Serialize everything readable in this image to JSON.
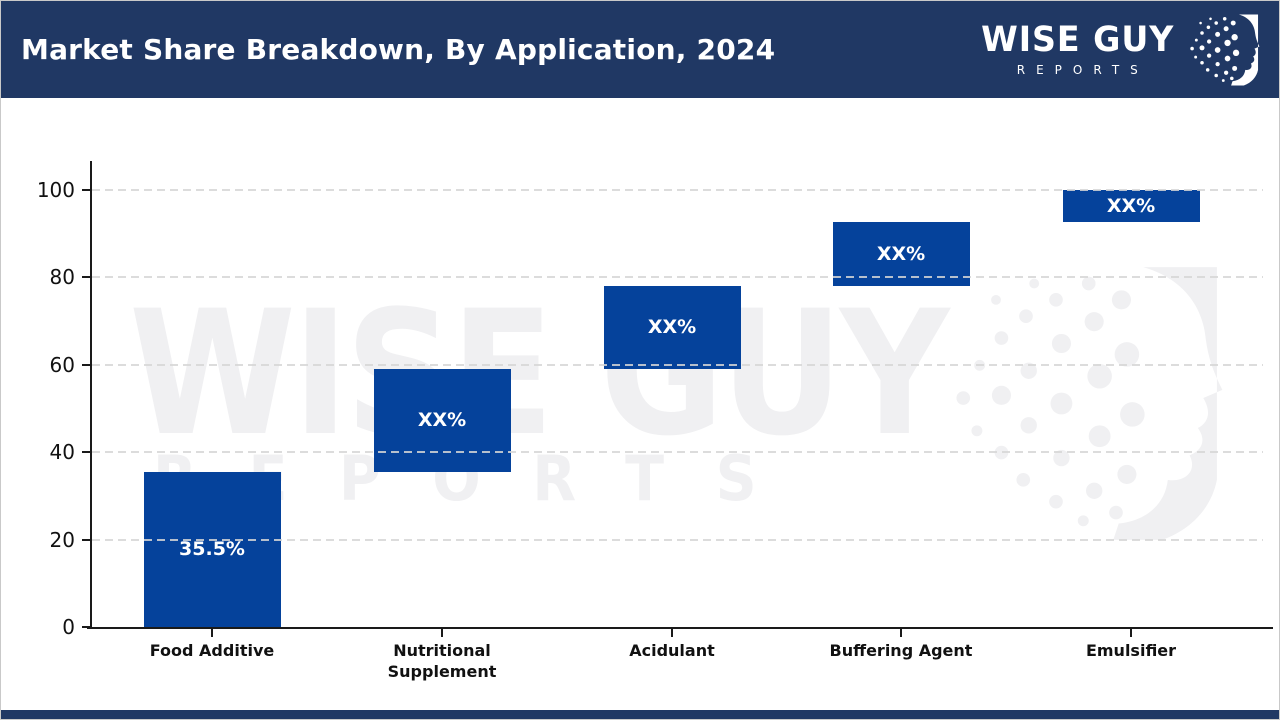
{
  "header": {
    "title": "Market Share Breakdown, By Application, 2024",
    "background_color": "#203864",
    "logo": {
      "line1": "WISE GUY",
      "line2": "REPORTS"
    }
  },
  "footer": {
    "background_color": "#203864"
  },
  "watermark": {
    "line1": "WISE GUY",
    "line2": "REPORTS"
  },
  "chart_data": {
    "type": "bar",
    "subtype": "waterfall",
    "title": "Market Share Breakdown, By Application, 2024",
    "categories": [
      "Food Additive",
      "Nutritional\nSupplement",
      "Acidulant",
      "Buffering Agent",
      "Emulsifier"
    ],
    "segments": [
      {
        "category": "Food Additive",
        "start": 0,
        "end": 35.5,
        "label": "35.5%"
      },
      {
        "category": "Nutritional Supplement",
        "start": 35.5,
        "end": 59,
        "label": "XX%"
      },
      {
        "category": "Acidulant",
        "start": 59,
        "end": 78,
        "label": "XX%"
      },
      {
        "category": "Buffering Agent",
        "start": 78,
        "end": 92.5,
        "label": "XX%"
      },
      {
        "category": "Emulsifier",
        "start": 92.5,
        "end": 100,
        "label": "XX%"
      }
    ],
    "ylim": [
      0,
      100
    ],
    "yticks": [
      0,
      20,
      40,
      60,
      80,
      100
    ],
    "xlabel": "",
    "ylabel": "",
    "grid": "horizontal-dashed",
    "legend_position": "none",
    "bar_color": "#05429b",
    "bar_label_color": "#ffffff",
    "axis_color": "#1a1a1a"
  }
}
